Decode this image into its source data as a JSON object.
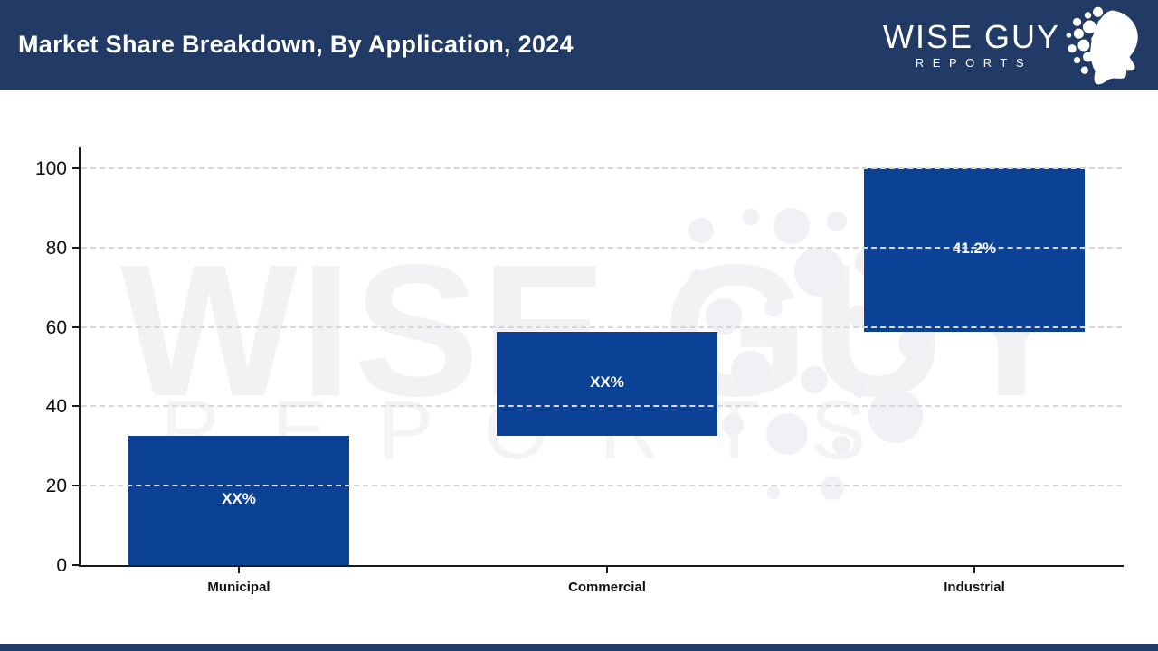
{
  "header": {
    "title": "Market Share Breakdown, By Application, 2024",
    "logo": {
      "line1": "WISE GUY",
      "line2": "REPORTS"
    }
  },
  "watermark": {
    "line1": "WISE GUY",
    "line2": "REPORTS"
  },
  "colors": {
    "header_bg": "#213A66",
    "bar": "#0B4295",
    "grid": "#D8D8D8",
    "axis": "#1A1A1A",
    "bar_label_text": "#FFFFFF",
    "watermark_text": "#F2F2F5"
  },
  "chart_data": {
    "type": "bar",
    "subtype": "floating-segment-bars",
    "title": "Market Share Breakdown, By Application, 2024",
    "categories": [
      "Municipal",
      "Commercial",
      "Industrial"
    ],
    "segments": [
      {
        "category": "Municipal",
        "from": 0,
        "to": 32.6,
        "label": "XX%"
      },
      {
        "category": "Commercial",
        "from": 32.6,
        "to": 58.8,
        "label": "XX%"
      },
      {
        "category": "Industrial",
        "from": 58.8,
        "to": 100.0,
        "label": "41.2%"
      }
    ],
    "yticks": [
      0,
      20,
      40,
      60,
      80,
      100
    ],
    "ylim": [
      0,
      105
    ],
    "xlabel": "",
    "ylabel": "",
    "grid": "horizontal-dashed",
    "legend": "none",
    "bar_color": "#0B4295"
  }
}
